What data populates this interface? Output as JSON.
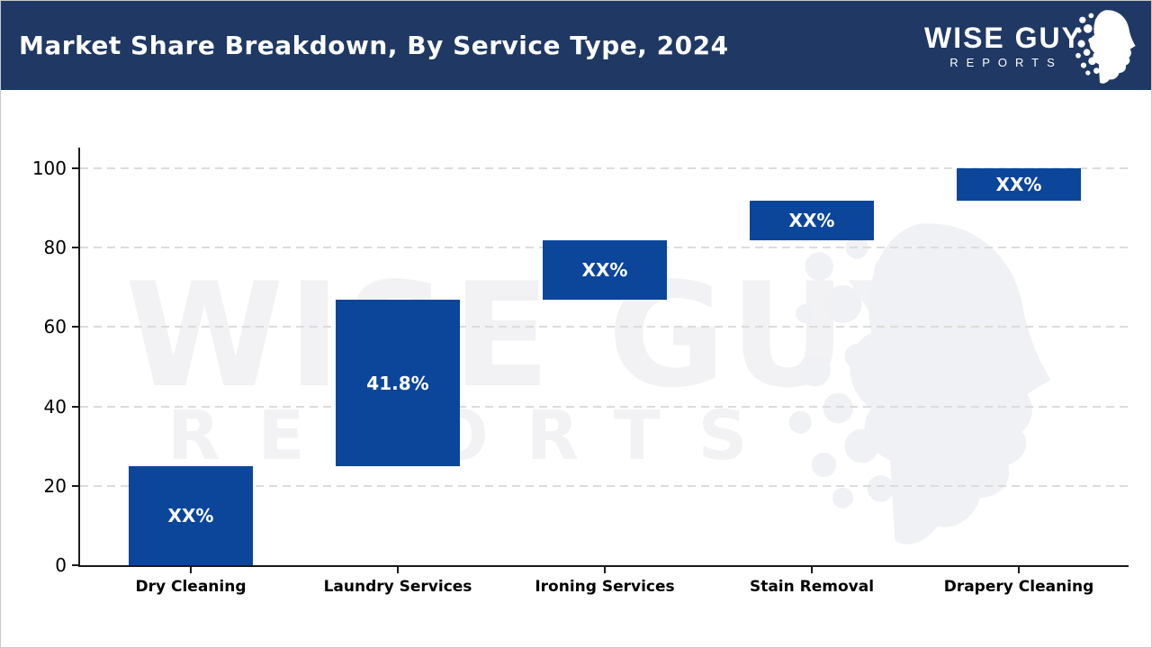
{
  "header": {
    "title": "Market Share Breakdown, By Service Type, 2024",
    "logo": {
      "wordmark": "WISE GUY",
      "subtext": "REPORTS"
    }
  },
  "watermark": {
    "wordmark": "WISE GUY",
    "subtext": "REPORTS"
  },
  "chart_data": {
    "type": "bar",
    "subtype": "waterfall-floating-segments",
    "title": "Market Share Breakdown, By Service Type, 2024",
    "categories": [
      "Dry Cleaning",
      "Laundry Services",
      "Ironing Services",
      "Stain Removal",
      "Drapery Cleaning"
    ],
    "series": [
      {
        "name": "Market Share (%)",
        "segments": [
          {
            "category": "Dry Cleaning",
            "start": 0,
            "end": 25,
            "label": "XX%"
          },
          {
            "category": "Laundry Services",
            "start": 25,
            "end": 66.8,
            "label": "41.8%"
          },
          {
            "category": "Ironing Services",
            "start": 66.8,
            "end": 81.8,
            "label": "XX%"
          },
          {
            "category": "Stain Removal",
            "start": 81.8,
            "end": 91.8,
            "label": "XX%"
          },
          {
            "category": "Drapery Cleaning",
            "start": 91.8,
            "end": 100,
            "label": "XX%"
          }
        ]
      }
    ],
    "yticks": [
      0,
      20,
      40,
      60,
      80,
      100
    ],
    "ylim": [
      0,
      105
    ],
    "xlabel": "",
    "ylabel": "",
    "grid": "horizontal-dashed",
    "legend": "none"
  },
  "colors": {
    "header_bg": "#1f3864",
    "bar": "#0b469b",
    "bar_label": "#ffffff",
    "grid": "#dcdcdc",
    "axis": "#1a1a1a",
    "watermark": "#f2f2f4"
  }
}
